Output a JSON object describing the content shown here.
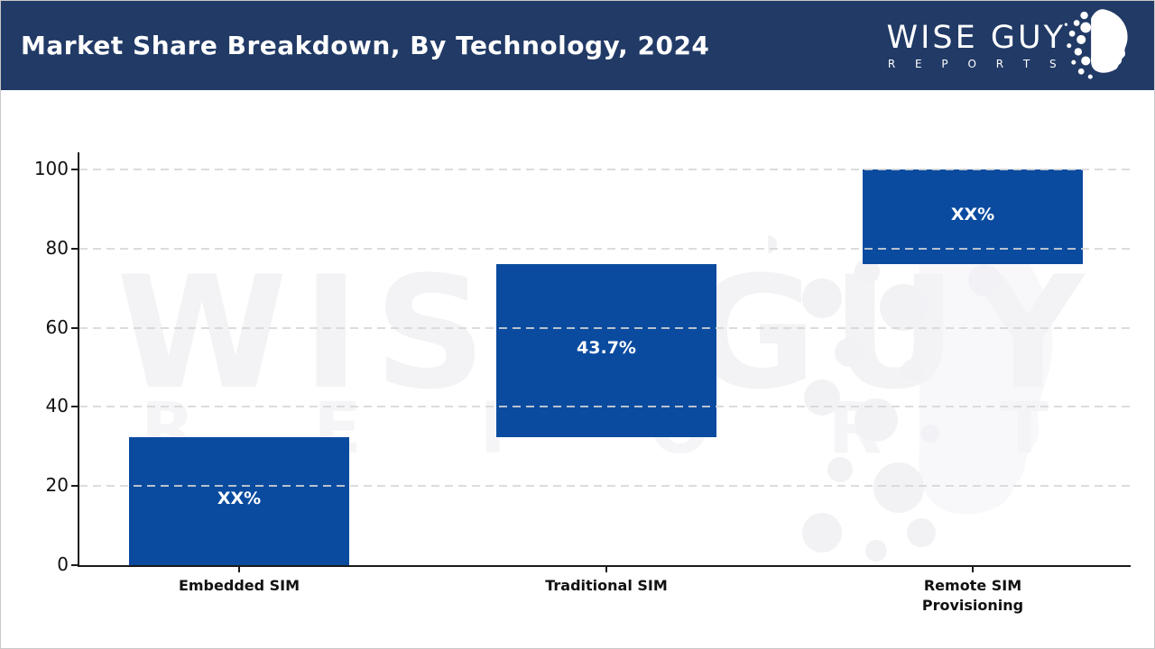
{
  "header": {
    "title": "Market Share Breakdown, By Technology, 2024",
    "logo": {
      "wordmark": "WISE GUY",
      "subtext": "R E P O R T S",
      "head_icon": "dotted-head-profile"
    },
    "background_color": "#213a66"
  },
  "watermark": {
    "wordmark": "WISE GUY",
    "subtext": "R E P O R T S"
  },
  "chart_data": {
    "type": "bar",
    "variant": "floating-segment-waterfall",
    "title": "Market Share Breakdown, By Technology, 2024",
    "categories": [
      "Embedded SIM",
      "Traditional SIM",
      "Remote SIM Provisioning"
    ],
    "segments": [
      {
        "category": "Embedded SIM",
        "from": 0,
        "to": 32.3,
        "label": "XX%"
      },
      {
        "category": "Traditional SIM",
        "from": 32.3,
        "to": 76,
        "label": "43.7%"
      },
      {
        "category": "Remote SIM Provisioning",
        "from": 76,
        "to": 100,
        "label": "XX%"
      }
    ],
    "yticks": [
      0,
      20,
      40,
      60,
      80,
      100
    ],
    "ylim": [
      0,
      105
    ],
    "xlabel": "",
    "ylabel": "",
    "legend": null,
    "grid": "horizontal-dashed",
    "bar_color": "#0a4b9f",
    "label_color": "#ffffff"
  }
}
